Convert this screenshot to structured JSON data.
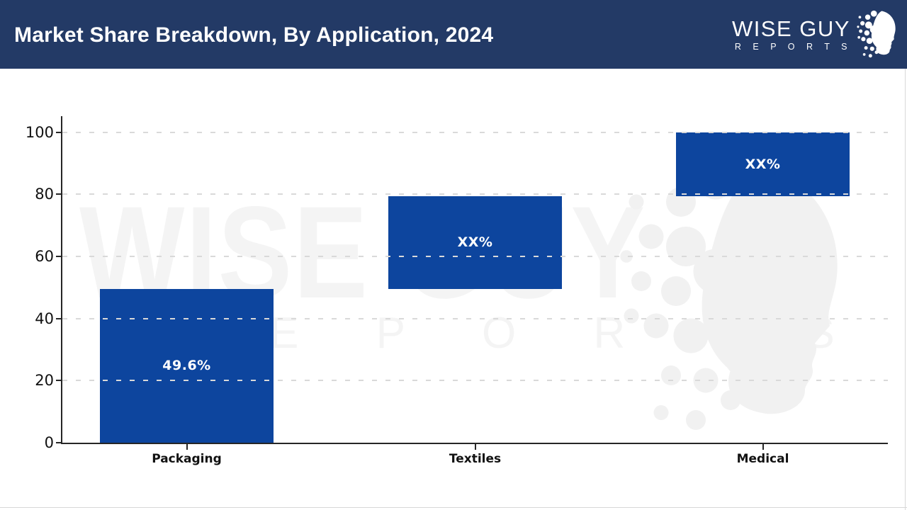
{
  "header": {
    "title": "Market Share Breakdown, By Application, 2024",
    "bg_color": "#233a66",
    "logo": {
      "line1": "WISE GUY",
      "line2": "R E P O R T S"
    }
  },
  "watermark": {
    "line1": "WISE GUY",
    "line2": "R E P O R T S"
  },
  "chart_data": {
    "type": "bar",
    "subtype": "floating-segmented-percent-of-total",
    "title": "Market Share Breakdown, By Application, 2024",
    "categories": [
      "Packaging",
      "Textiles",
      "Medical"
    ],
    "segments": [
      {
        "category": "Packaging",
        "from": 0,
        "to": 49.6,
        "label": "49.6%"
      },
      {
        "category": "Textiles",
        "from": 49.6,
        "to": 79.4,
        "label": "XX%"
      },
      {
        "category": "Medical",
        "from": 79.4,
        "to": 100,
        "label": "XX%"
      }
    ],
    "values_pct": [
      49.6,
      29.8,
      20.6
    ],
    "xlabel": "",
    "ylabel": "",
    "yticks": [
      0,
      20,
      40,
      60,
      80,
      100
    ],
    "ylim": [
      0,
      105
    ],
    "grid": "horizontal-dashed-over-bars",
    "legend": "none",
    "bar_color": "#0d459e",
    "bar_label_color": "#ffffff",
    "grid_color": "#d9d9d9",
    "axis_color": "#262626"
  }
}
